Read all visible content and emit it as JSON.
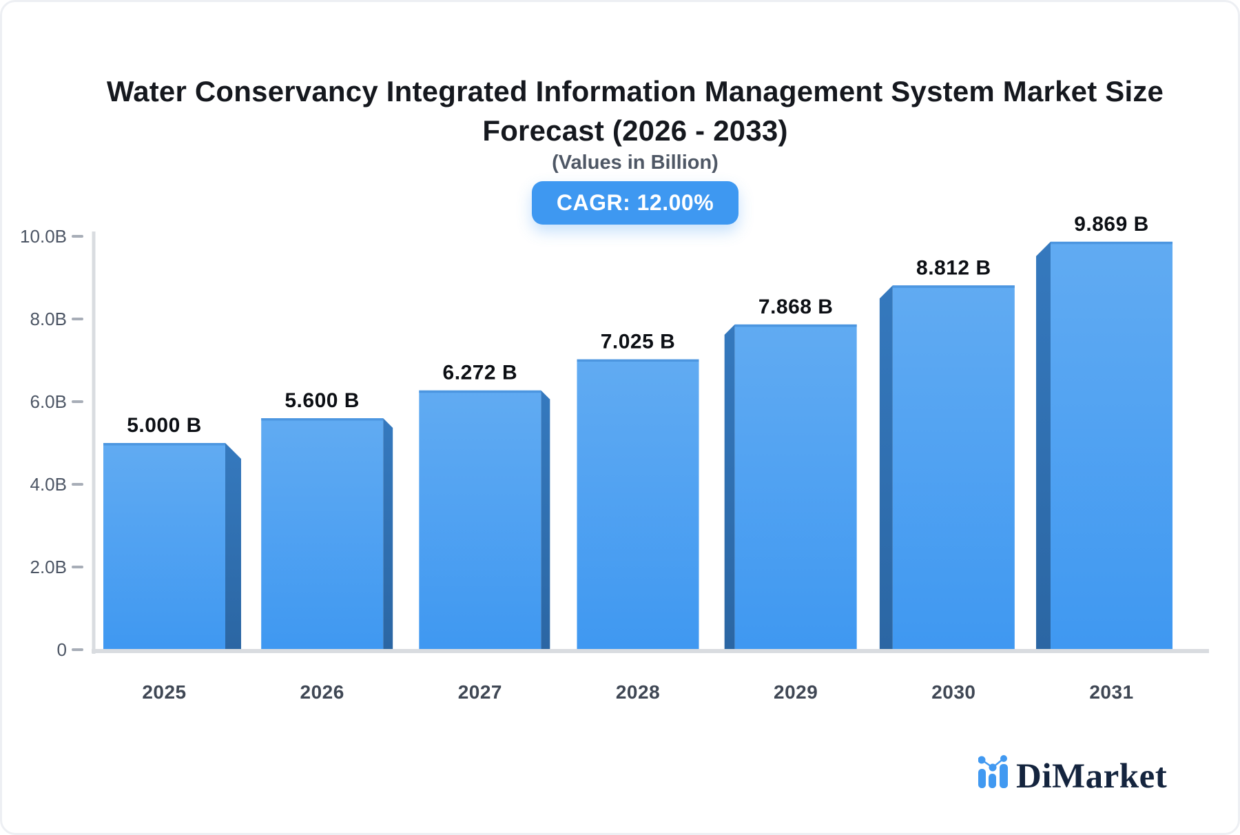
{
  "page": {
    "background": "#ffffff",
    "border_color": "#edeff3"
  },
  "header": {
    "title_line1": "Water Conservancy Integrated Information Management System Market Size",
    "title_line2": "Forecast (2026 - 2033)",
    "subtitle": "(Values in Billion)",
    "cagr_badge": "CAGR: 12.00%",
    "badge_color": "#3E98F1"
  },
  "chart_data": {
    "type": "bar",
    "title": "Water Conservancy Integrated Information Management System Market Size Forecast (2026 - 2033)",
    "subtitle": "(Values in Billion)",
    "cagr_percent": 12.0,
    "unit": "Billion",
    "categories": [
      "2025",
      "2026",
      "2027",
      "2028",
      "2029",
      "2030",
      "2031"
    ],
    "values": [
      5.0,
      5.6,
      6.272,
      7.025,
      7.868,
      8.812,
      9.869
    ],
    "value_labels": [
      "5.000 B",
      "5.600 B",
      "6.272 B",
      "7.025 B",
      "7.868 B",
      "8.812 B",
      "9.869 B"
    ],
    "ylim": [
      0,
      10
    ],
    "y_tick_step": 2,
    "y_tick_labels": [
      "10.0B",
      "8.0B",
      "6.0B",
      "4.0B",
      "2.0B",
      "0"
    ],
    "grid": false,
    "legend": false,
    "colors": {
      "bar_face_top": "#61ABF2",
      "bar_face_bottom": "#3F98F1",
      "bar_side_top": "#3579BE",
      "bar_side_bottom": "#2B66A3",
      "bar_top_edge": "#4C96E0",
      "axis_line": "#D9DCE0",
      "tick": "#A7ADB7",
      "y_label": "#4C5564",
      "x_label": "#3F4754",
      "value_label": "#0C0F14"
    }
  },
  "footer": {
    "brand": "DiMarket",
    "brand_icon": "mini-bar-line-chart-icon",
    "brand_icon_color": "#4199F1",
    "brand_text_color": "#14243E"
  }
}
